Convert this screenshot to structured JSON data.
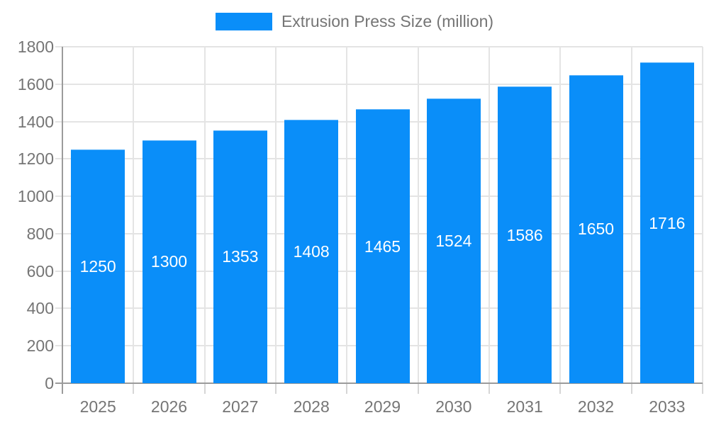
{
  "legend": {
    "label": "Extrusion Press Size (million)",
    "swatch_color": "#0a8ef9"
  },
  "chart_data": {
    "type": "bar",
    "title": "Extrusion Press Size (million)",
    "categories": [
      "2025",
      "2026",
      "2027",
      "2028",
      "2029",
      "2030",
      "2031",
      "2032",
      "2033"
    ],
    "values": [
      1250,
      1300,
      1353,
      1408,
      1465,
      1524,
      1586,
      1650,
      1716
    ],
    "series": [
      {
        "name": "Extrusion Press Size (million)",
        "values": [
          1250,
          1300,
          1353,
          1408,
          1465,
          1524,
          1586,
          1650,
          1716
        ]
      }
    ],
    "bar_value_labels": [
      "1250",
      "1300",
      "1353",
      "1408",
      "1465",
      "1524",
      "1586",
      "1650",
      "1716"
    ],
    "xlabel": "",
    "ylabel": "",
    "ylim": [
      0,
      1800
    ],
    "ytick_step": 200,
    "yticks": [
      0,
      200,
      400,
      600,
      800,
      1000,
      1200,
      1400,
      1600,
      1800
    ],
    "grid": true,
    "legend_position": "top-center",
    "colors": {
      "bar": "#0a8ef9",
      "bar_label": "#ffffff",
      "grid": "#e4e4e4",
      "axis": "#9b9b9b",
      "tick_text": "#757575"
    }
  }
}
